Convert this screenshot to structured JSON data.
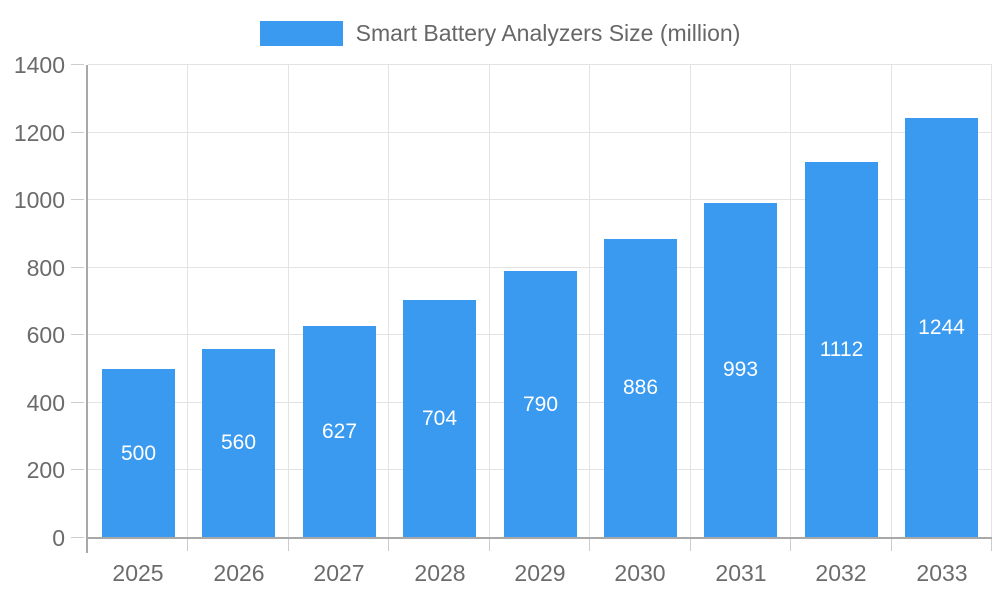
{
  "legend": {
    "label": "Smart Battery Analyzers Size (million)"
  },
  "chart_data": {
    "type": "bar",
    "title": "Smart Battery Analyzers Size (million)",
    "categories": [
      "2025",
      "2026",
      "2027",
      "2028",
      "2029",
      "2030",
      "2031",
      "2032",
      "2033"
    ],
    "values": [
      500,
      560,
      627,
      704,
      790,
      886,
      993,
      1112,
      1244
    ],
    "xlabel": "",
    "ylabel": "",
    "ylim": [
      0,
      1400
    ],
    "yticks": [
      0,
      200,
      400,
      600,
      800,
      1000,
      1200,
      1400
    ],
    "grid": true,
    "legend_position": "top-center",
    "value_labels": "inside-center",
    "colors": {
      "bar": "#399af0",
      "value_label": "#ffffff",
      "axis_label": "#6b6b6b",
      "legend_label": "#676767",
      "grid_line": "#e3e3e3",
      "axis_line": "#a8a8a8",
      "tick": "#cccccc",
      "background": "#ffffff"
    }
  }
}
